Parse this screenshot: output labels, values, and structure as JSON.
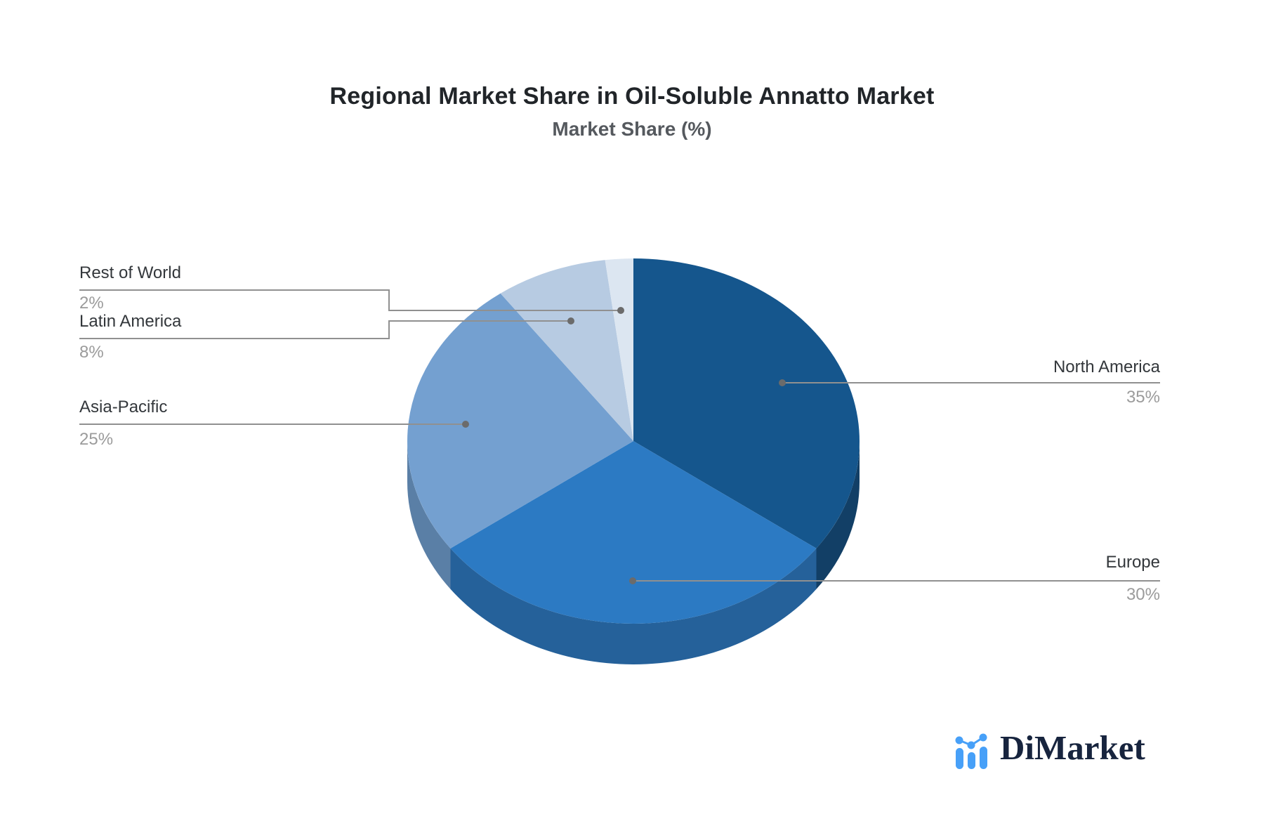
{
  "header": {
    "title": "Regional Market Share in Oil-Soluble Annatto Market",
    "subtitle": "Market Share (%)"
  },
  "chart_data": {
    "type": "pie",
    "title": "Regional Market Share in Oil-Soluble Annatto Market",
    "subtitle": "Market Share (%)",
    "unit": "%",
    "style": "3d-pie",
    "start_angle_deg": 0,
    "direction": "clockwise",
    "legend": "none",
    "slices": [
      {
        "label": "North America",
        "value": 35,
        "pct": "35%",
        "color": "#15568D",
        "side_color": "#123F66"
      },
      {
        "label": "Europe",
        "value": 30,
        "pct": "30%",
        "color": "#2C7AC3",
        "side_color": "#25619A"
      },
      {
        "label": "Asia-Pacific",
        "value": 25,
        "pct": "25%",
        "color": "#74A0D0",
        "side_color": "#5A7FA6"
      },
      {
        "label": "Latin America",
        "value": 8,
        "pct": "8%",
        "color": "#B7CBE2",
        "side_color": "#8FA9C4"
      },
      {
        "label": "Rest of World",
        "value": 2,
        "pct": "2%",
        "color": "#DCE6F1",
        "side_color": "#ABB9CB"
      }
    ],
    "connector_color": "#909090",
    "connector_dot_color": "#6b6b6b"
  },
  "logo": {
    "text": "DiMarket",
    "icon": "bar-line-chart-icon",
    "icon_color": "#47A0F8"
  }
}
